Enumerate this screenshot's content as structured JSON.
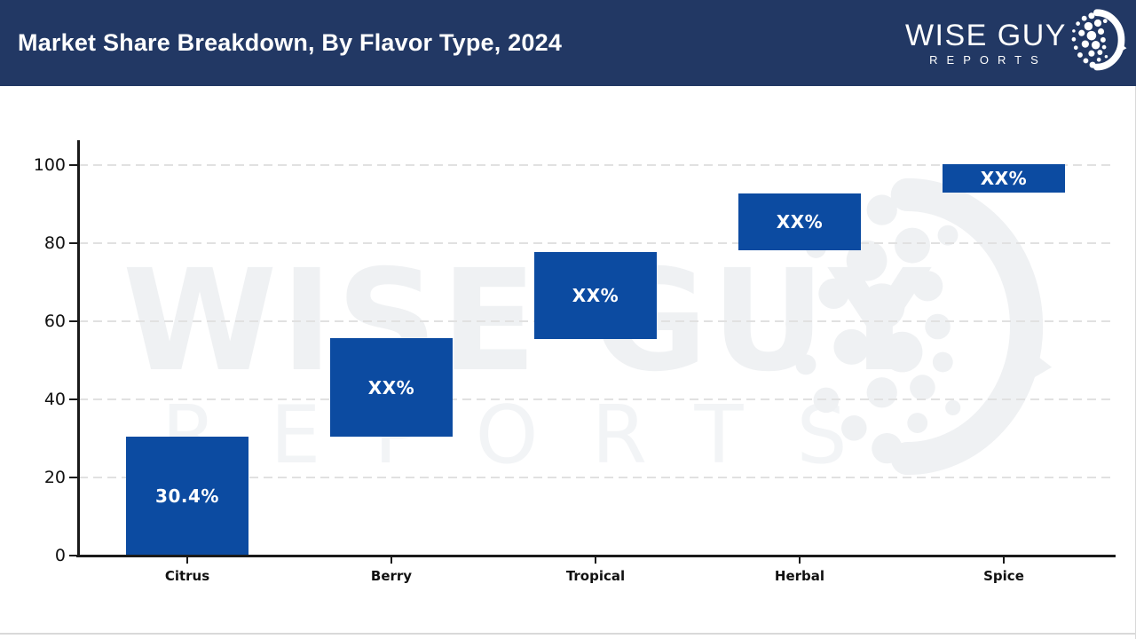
{
  "header": {
    "title": "Market Share Breakdown, By Flavor Type, 2024",
    "bg_color": "#223864",
    "logo": {
      "wordmark": "WISE GUY",
      "subtext": "REPORTS"
    }
  },
  "watermark": {
    "line1": "WISE GUY",
    "line2": "REPORTS"
  },
  "chart_data": {
    "type": "bar",
    "subtype": "waterfall",
    "title": "Market Share Breakdown, By Flavor Type, 2024",
    "categories": [
      "Citrus",
      "Berry",
      "Tropical",
      "Herbal",
      "Spice"
    ],
    "segments": [
      {
        "category": "Citrus",
        "start": 0,
        "end": 30.4,
        "label": "30.4%"
      },
      {
        "category": "Berry",
        "start": 30.4,
        "end": 55.7,
        "label": "XX%"
      },
      {
        "category": "Tropical",
        "start": 55.5,
        "end": 77.8,
        "label": "XX%"
      },
      {
        "category": "Herbal",
        "start": 78.1,
        "end": 92.7,
        "label": "XX%"
      },
      {
        "category": "Spice",
        "start": 93.0,
        "end": 100.3,
        "label": "XX%"
      }
    ],
    "y_ticks": [
      0,
      20,
      40,
      60,
      80,
      100
    ],
    "y_tick_labels": [
      "0",
      "20",
      "40",
      "60",
      "80",
      "100"
    ],
    "ylim": [
      0,
      106
    ],
    "xlabel": "",
    "ylabel": "",
    "grid": "horizontal-dashed",
    "legend": "none",
    "bar_color": "#0C4BA1",
    "bar_label_color": "#FFFFFF",
    "value_suffix": "%"
  }
}
